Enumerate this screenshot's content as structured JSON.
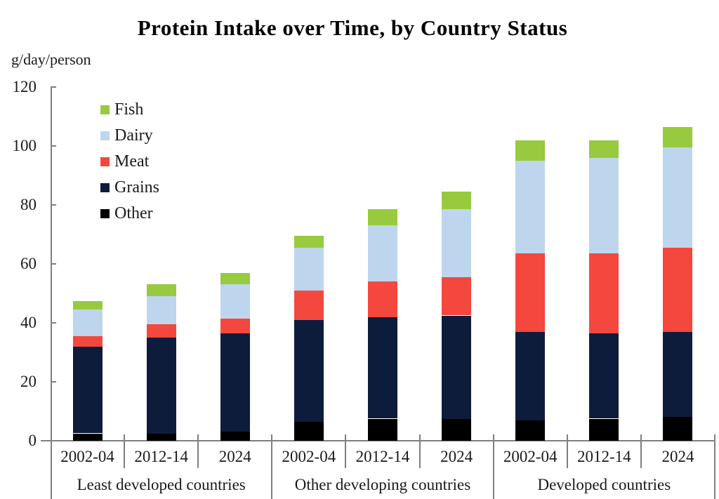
{
  "chart_data": {
    "type": "bar",
    "stacked": true,
    "title": "Protein Intake over Time, by Country Status",
    "ylabel": "g/day/person",
    "xlabel": "",
    "ylim": [
      0,
      120
    ],
    "yticks": [
      0,
      20,
      40,
      60,
      80,
      100,
      120
    ],
    "grid": false,
    "legend_position": "top-left-inside",
    "legend_order": [
      "Fish",
      "Dairy",
      "Meat",
      "Grains",
      "Other"
    ],
    "groups": [
      {
        "label": "Least developed countries",
        "periods": [
          "2002-04",
          "2012-14",
          "2024"
        ]
      },
      {
        "label": "Other developing countries",
        "periods": [
          "2002-04",
          "2012-14",
          "2024"
        ]
      },
      {
        "label": "Developed countries",
        "periods": [
          "2002-04",
          "2012-14",
          "2024"
        ]
      }
    ],
    "series": [
      {
        "name": "Other",
        "color": "#000000",
        "values": [
          2.5,
          2.5,
          3,
          6.5,
          7.5,
          7.5,
          7,
          7.5,
          8
        ]
      },
      {
        "name": "Grains",
        "color": "#0e1c3c",
        "values": [
          29.5,
          32.5,
          33.5,
          34.5,
          34.5,
          35,
          30,
          29,
          29
        ]
      },
      {
        "name": "Meat",
        "color": "#f4473e",
        "values": [
          3.5,
          4.5,
          5,
          10,
          12,
          13,
          26.5,
          27,
          28.5
        ]
      },
      {
        "name": "Dairy",
        "color": "#bdd6ed",
        "values": [
          9,
          9.5,
          11.5,
          14.5,
          19,
          23,
          31.5,
          32.5,
          34
        ]
      },
      {
        "name": "Fish",
        "color": "#97ca3e",
        "values": [
          3,
          4,
          4,
          4,
          5.5,
          6,
          7,
          6,
          7
        ]
      }
    ],
    "colors": {
      "axis": "#7f7f7f",
      "text": "#1a1a1a",
      "title": "#000000"
    }
  }
}
